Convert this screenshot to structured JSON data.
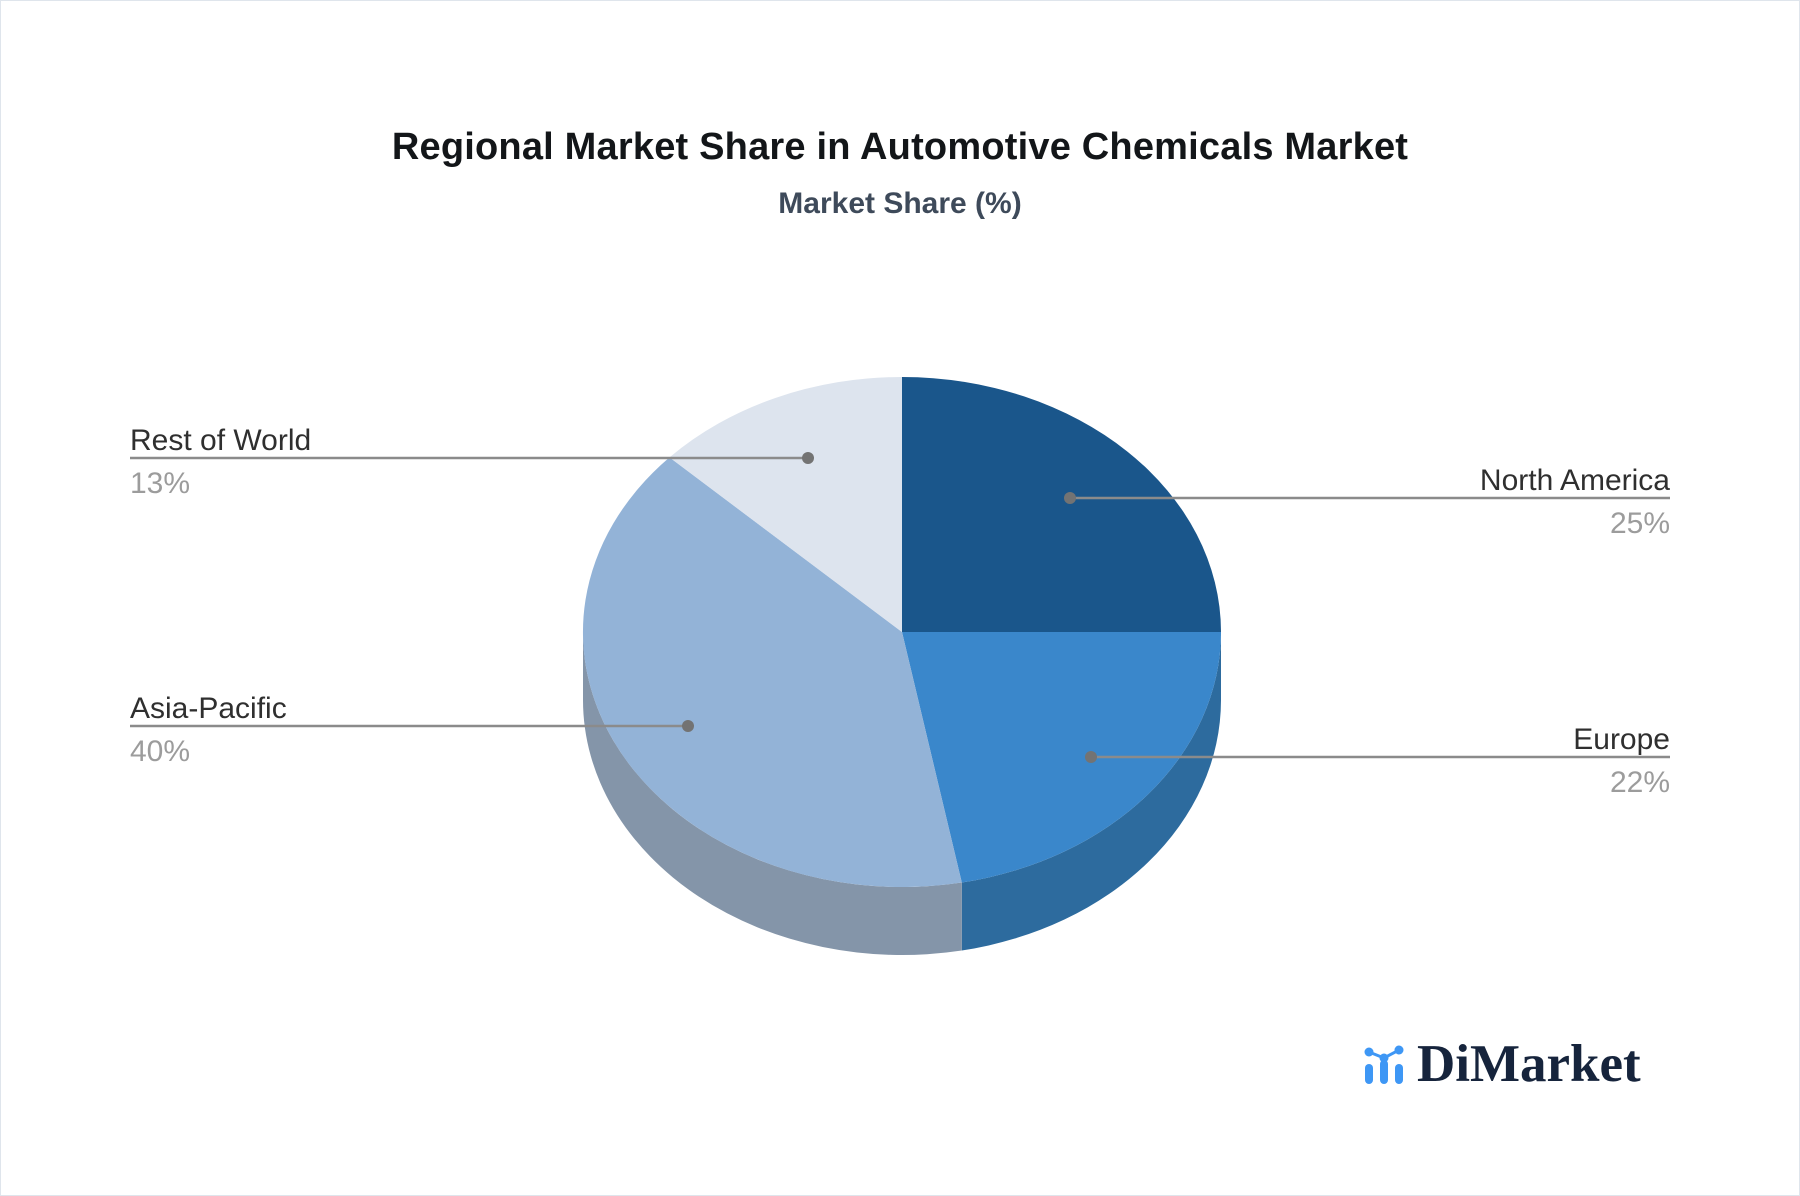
{
  "chart_data": {
    "type": "pie",
    "style": "3d-pie",
    "title": "Regional Market Share in Automotive Chemicals Market",
    "subtitle": "Market Share (%)",
    "unit": "%",
    "start_angle": "12-oclock-clockwise",
    "legend_position": "callout-labels",
    "series": [
      {
        "name": "North America",
        "value": 25,
        "pct_label": "25%",
        "color": "#1a568b"
      },
      {
        "name": "Europe",
        "value": 22,
        "pct_label": "22%",
        "color": "#3a87cb",
        "side_color": "#2d6b9e"
      },
      {
        "name": "Asia-Pacific",
        "value": 40,
        "pct_label": "40%",
        "color": "#93b3d7",
        "side_color": "#8495a9"
      },
      {
        "name": "Rest of World",
        "value": 13,
        "pct_label": "13%",
        "color": "#dde4ee"
      }
    ]
  },
  "branding": {
    "logo_text": "DiMarket",
    "logo_text_color": "#16243c",
    "logo_icon": "bar-line-chart-icon",
    "logo_icon_color": "#3e97f5"
  },
  "colors": {
    "background": "#ffffff",
    "page_border": "#dfe5ec",
    "title": "#131619",
    "subtitle": "#3e4a5a",
    "label_name": "#2f2f2f",
    "label_pct": "#9c9c9c",
    "leader_line": "#8b8b8b",
    "leader_dot": "#737373"
  }
}
